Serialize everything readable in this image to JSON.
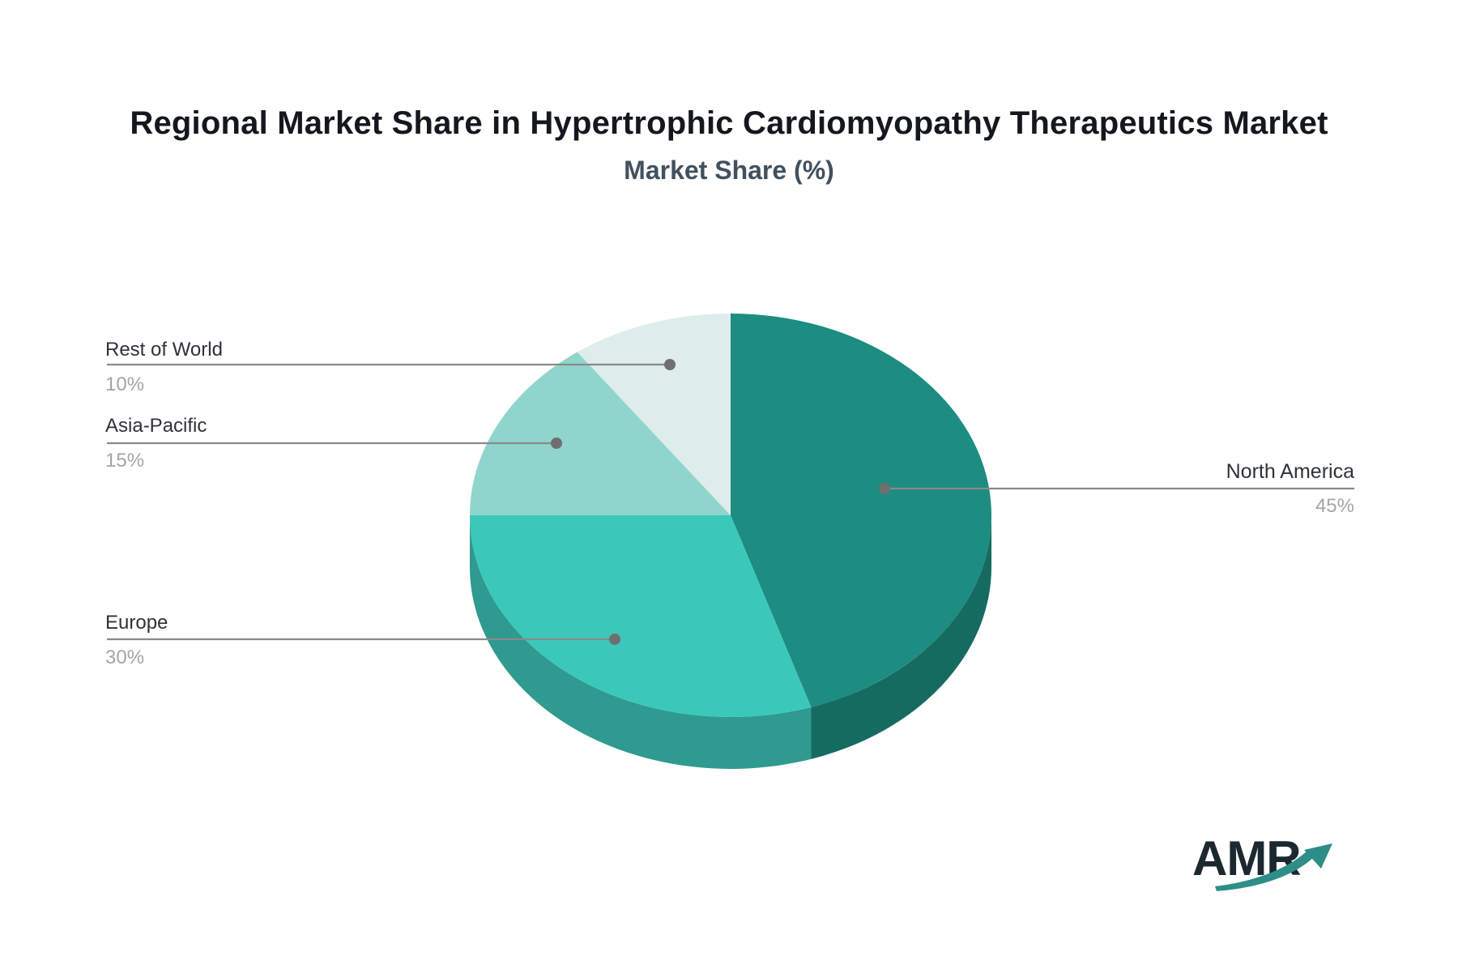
{
  "title": "Regional Market Share in Hypertrophic Cardiomyopathy Therapeutics Market",
  "subtitle": "Market Share (%)",
  "background_color": "#ffffff",
  "logo": {
    "text": "AMR",
    "arrow_color": "#2e8e87",
    "text_color": "#1c2830"
  },
  "callout_style": {
    "line_color": "#8a8a8a",
    "dot_color": "#6f6f6f",
    "label_color": "#2e3338",
    "value_color": "#a2a6a8"
  },
  "chart_data": {
    "type": "pie",
    "title": "Regional Market Share in Hypertrophic Cardiomyopathy Therapeutics Market",
    "subtitle": "Market Share (%)",
    "unit": "%",
    "effect": "3d",
    "start_angle_deg": 0,
    "direction": "clockwise",
    "legend_position": "callout-labels",
    "grid": false,
    "slices": [
      {
        "label": "North America",
        "value": 45,
        "display": "45%",
        "color": "#1d8c81",
        "side_color": "#166b61"
      },
      {
        "label": "Europe",
        "value": 30,
        "display": "30%",
        "color": "#3bc8ba",
        "side_color": "#2f9a8f"
      },
      {
        "label": "Asia-Pacific",
        "value": 15,
        "display": "15%",
        "color": "#90d5cc",
        "side_color": "#6fb8ae"
      },
      {
        "label": "Rest of World",
        "value": 10,
        "display": "10%",
        "color": "#ddedea",
        "side_color": "#bcd6d2"
      }
    ]
  }
}
